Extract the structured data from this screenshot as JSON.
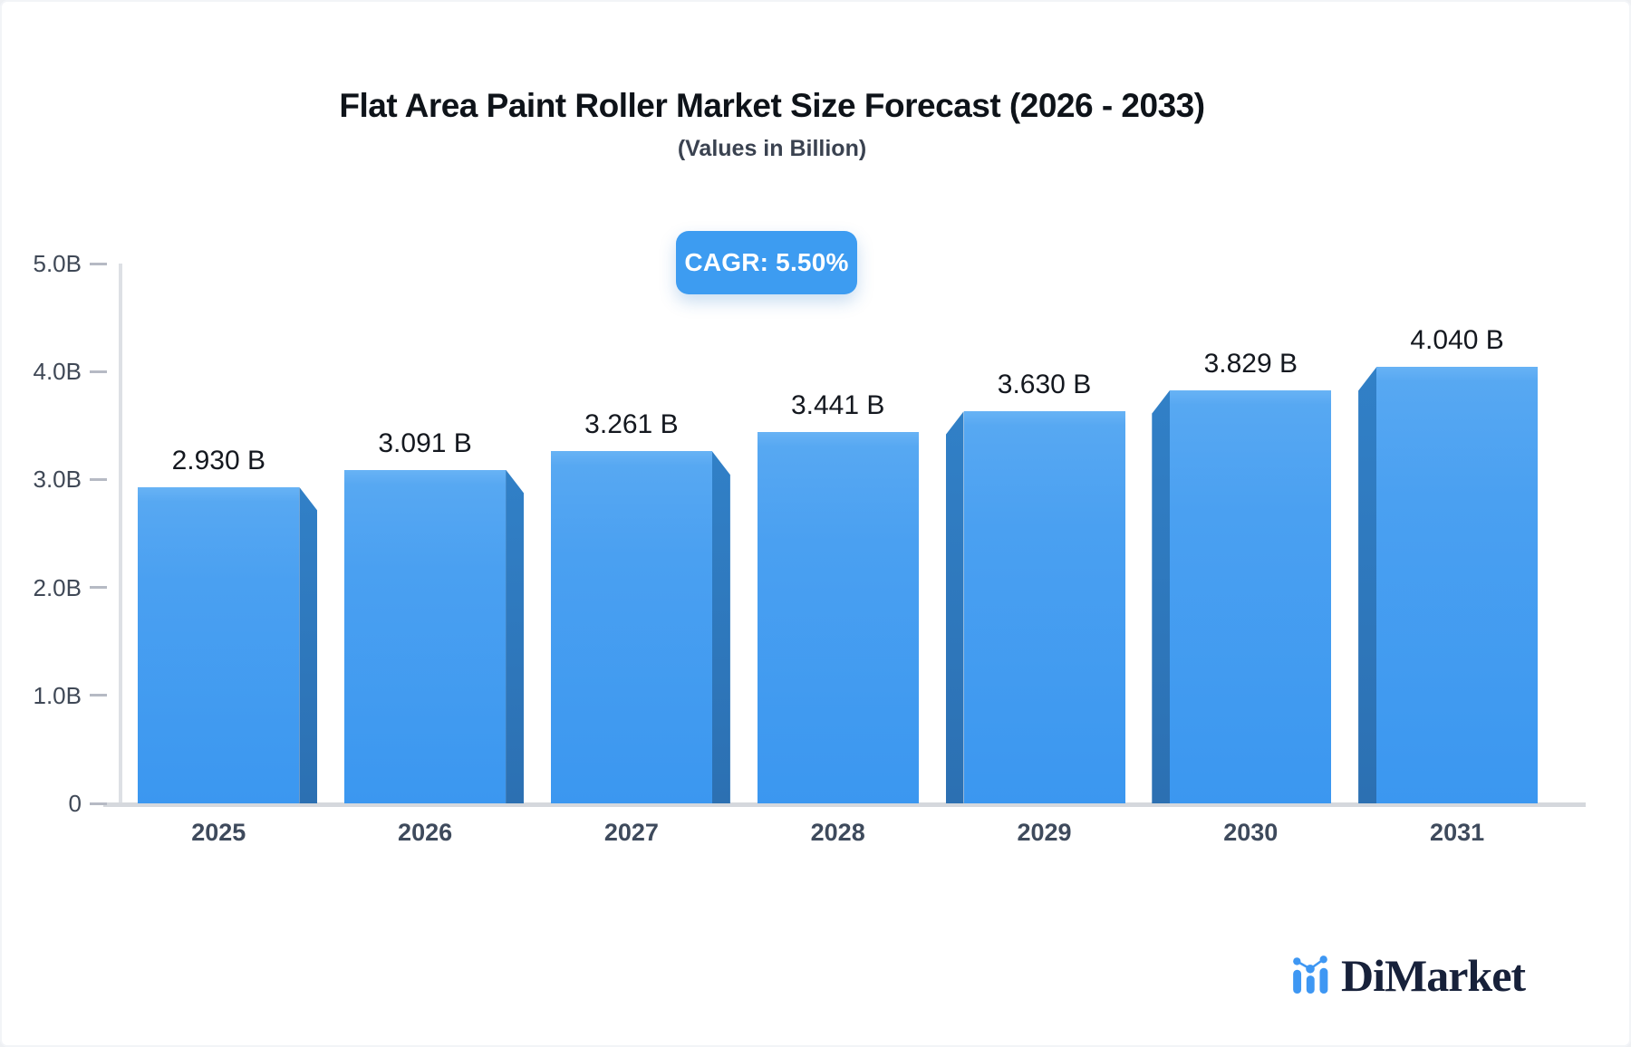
{
  "header": {
    "title": "Flat Area Paint Roller Market Size Forecast (2026 - 2033)",
    "subtitle": "(Values in Billion)",
    "cagr_badge": "CAGR: 5.50%"
  },
  "chart_data": {
    "type": "bar",
    "title": "Flat Area Paint Roller Market Size Forecast (2026 - 2033)",
    "subtitle": "(Values in Billion)",
    "cagr_label": "CAGR: 5.50%",
    "categories": [
      "2025",
      "2026",
      "2027",
      "2028",
      "2029",
      "2030",
      "2031"
    ],
    "values": [
      2.93,
      3.091,
      3.261,
      3.441,
      3.63,
      3.829,
      4.04
    ],
    "value_labels": [
      "2.930 B",
      "3.091 B",
      "3.261 B",
      "3.441 B",
      "3.630 B",
      "3.829 B",
      "4.040 B"
    ],
    "xlabel": "",
    "ylabel": "",
    "ylim": [
      0,
      5
    ],
    "y_ticks": [
      {
        "label": "0",
        "value": 0
      },
      {
        "label": "1.0B",
        "value": 1
      },
      {
        "label": "2.0B",
        "value": 2
      },
      {
        "label": "3.0B",
        "value": 3
      },
      {
        "label": "4.0B",
        "value": 4
      },
      {
        "label": "5.0B",
        "value": 5
      }
    ],
    "grid": "off",
    "legend": "none",
    "bar_style": "pseudo-3d, side bevel faces toward center bar",
    "colors": {
      "bar_top": "#57a8f2",
      "bar_bottom": "#3b97f0",
      "bar_side": "#2e74b9",
      "axis_line": "#dde0e5",
      "baseline": "#d5d8dd",
      "tick": "#b6bac4",
      "axis_label": "#3f4856",
      "value_label": "#14181f",
      "badge_bg": "#3d9cf1",
      "badge_text": "#ffffff"
    }
  },
  "footer": {
    "brand": "DiMarket",
    "brand_color": "#17213a",
    "icon": "dimarket-bar-chart-icon",
    "icon_color": "#3e97f3"
  }
}
